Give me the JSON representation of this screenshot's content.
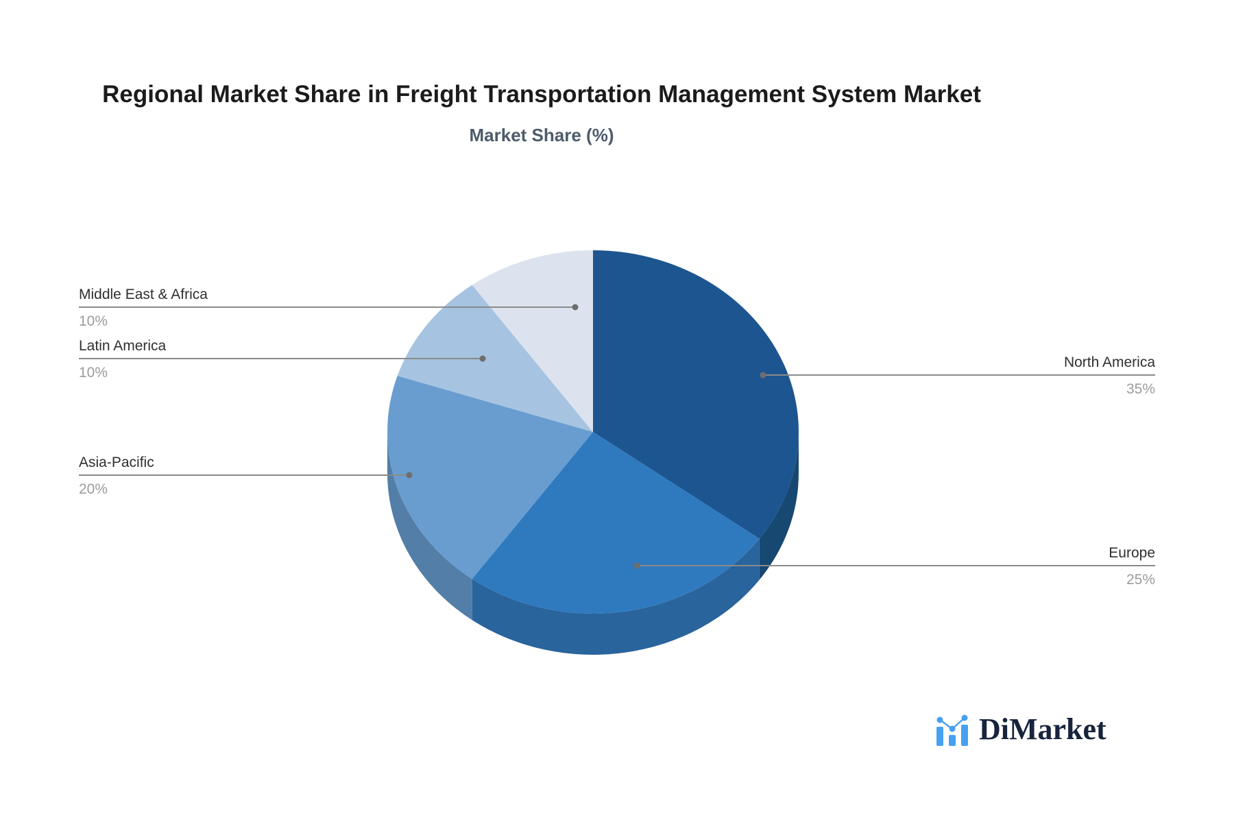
{
  "chart_data": {
    "type": "pie",
    "title": "Regional Market Share in Freight Transportation Management System Market",
    "subtitle": "Market Share (%)",
    "unit": "%",
    "legend_position": "none",
    "grid": false,
    "style": "3d-pie",
    "start_angle_deg": 0,
    "clockwise": true,
    "slices": [
      {
        "label": "North America",
        "value": 35,
        "pct_label": "35%",
        "color": "#1d5590",
        "side_color": "#174872",
        "label_side": "right"
      },
      {
        "label": "Europe",
        "value": 25,
        "pct_label": "25%",
        "color": "#2f7abf",
        "side_color": "#29649c",
        "label_side": "right"
      },
      {
        "label": "Asia-Pacific",
        "value": 20,
        "pct_label": "20%",
        "color": "#699dd0",
        "side_color": "#527ea8",
        "label_side": "left"
      },
      {
        "label": "Latin America",
        "value": 10,
        "pct_label": "10%",
        "color": "#a6c4e1",
        "side_color": "#7fa3c5",
        "label_side": "left"
      },
      {
        "label": "Middle East & Africa",
        "value": 10,
        "pct_label": "10%",
        "color": "#dde3ee",
        "side_color": "#b5c4d8",
        "label_side": "left"
      }
    ],
    "connector_color": "#8a8a8a",
    "connector_dot_color": "#6e6e6e",
    "label_color": "#2f2f2f",
    "percent_color": "#9b9b9b"
  },
  "logo": {
    "text": "DiMarket",
    "icon_color": "#47a1f2",
    "text_color": "#18243d"
  }
}
